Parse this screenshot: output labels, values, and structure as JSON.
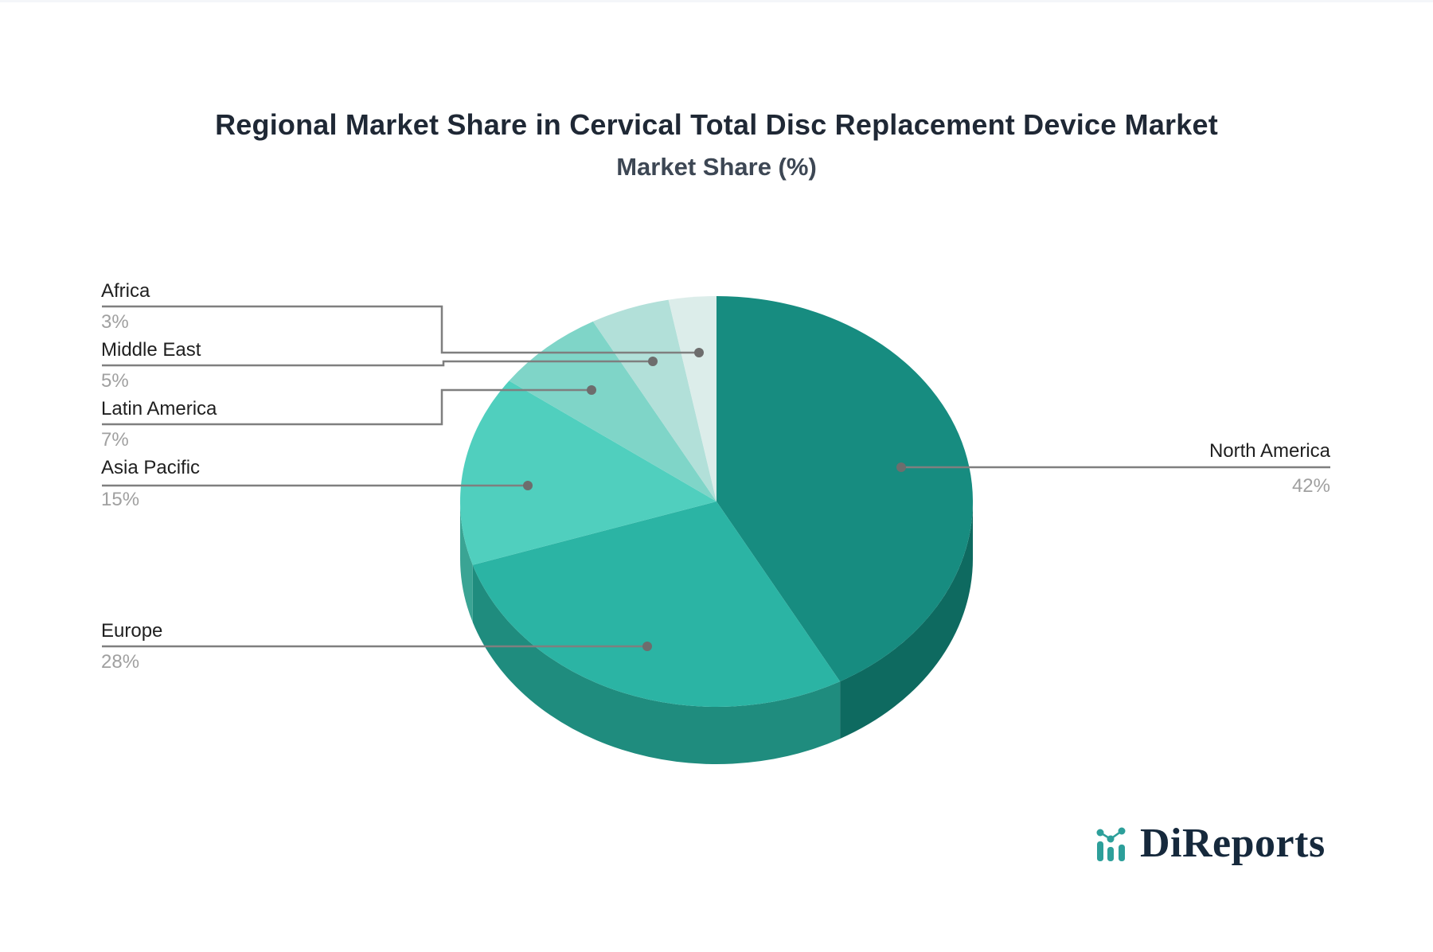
{
  "title": "Regional Market Share in Cervical Total Disc Replacement Device Market",
  "subtitle": "Market Share (%)",
  "logo": {
    "text": "DiReports",
    "icon": "bar-line-chart-icon",
    "icon_color": "#2D9F9A",
    "text_color": "#16293C"
  },
  "chart_data": {
    "type": "pie",
    "title": "Regional Market Share in Cervical Total Disc Replacement Device Market",
    "subtitle": "Market Share (%)",
    "unit": "%",
    "style": "3d-pie",
    "start_angle_deg": 0,
    "direction": "clockwise",
    "legend_position": "callout-labels",
    "segments": [
      {
        "label": "North America",
        "value": 42,
        "pct_label": "42%",
        "color": "#178C80",
        "side_color": "#0E6A60"
      },
      {
        "label": "Europe",
        "value": 28,
        "pct_label": "28%",
        "color": "#2BB4A4",
        "side_color": "#1F8C7E"
      },
      {
        "label": "Asia Pacific",
        "value": 15,
        "pct_label": "15%",
        "color": "#50CFBE",
        "side_color": "#3AA494"
      },
      {
        "label": "Latin America",
        "value": 7,
        "pct_label": "7%",
        "color": "#7FD5C8",
        "side_color": "#5FBFB0"
      },
      {
        "label": "Middle East",
        "value": 5,
        "pct_label": "5%",
        "color": "#B2E0D9",
        "side_color": "#8FCDC3"
      },
      {
        "label": "Africa",
        "value": 3,
        "pct_label": "3%",
        "color": "#DCEDEA",
        "side_color": "#B8DCD6"
      }
    ],
    "leader_line_color": "#7f7f7f",
    "label_text_color": "#1f1f1f",
    "pct_text_color": "#a0a0a0"
  }
}
